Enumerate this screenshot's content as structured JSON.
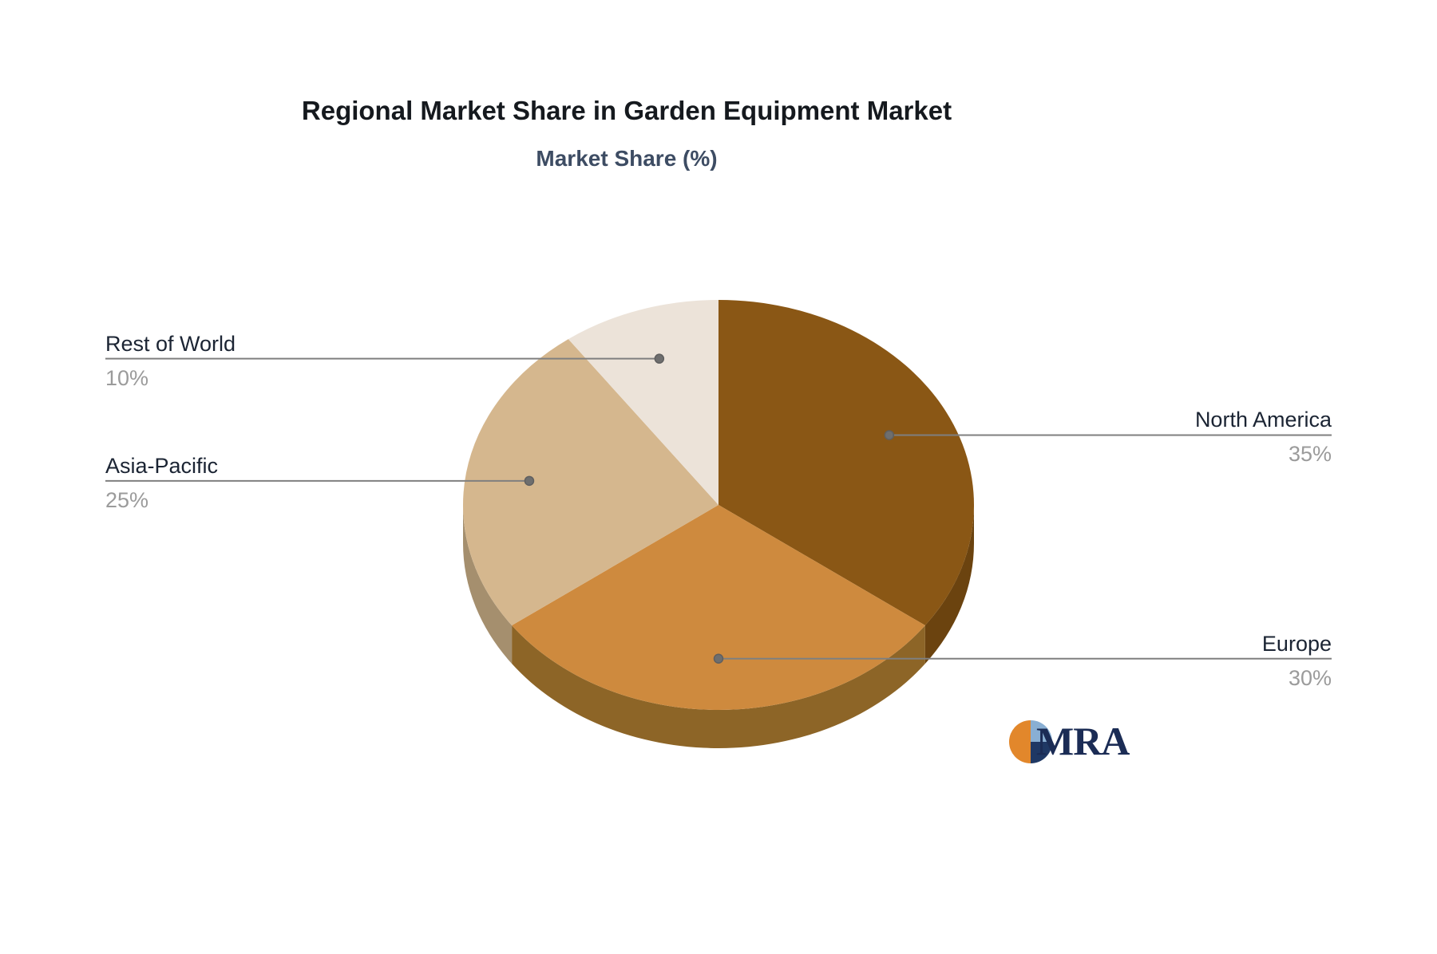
{
  "title": "Regional Market Share in Garden Equipment Market",
  "subtitle": "Market Share (%)",
  "chart_data": {
    "type": "pie",
    "title": "Regional Market Share in Garden Equipment Market",
    "subtitle": "Market Share (%)",
    "unit": "%",
    "effect": "3d",
    "direction": "clockwise",
    "start_angle_deg": 0,
    "legend": "none",
    "slices": [
      {
        "label": "North America",
        "value": 35,
        "display": "35%",
        "color": "#8A5715",
        "side_color": "#6B430F",
        "label_side": "right"
      },
      {
        "label": "Europe",
        "value": 30,
        "display": "30%",
        "color": "#CE8A3E",
        "side_color": "#8D6527",
        "label_side": "right"
      },
      {
        "label": "Asia-Pacific",
        "value": 25,
        "display": "25%",
        "color": "#D5B78E",
        "side_color": "#A58F6E",
        "label_side": "left"
      },
      {
        "label": "Rest of World",
        "value": 10,
        "display": "10%",
        "color": "#ECE3D9",
        "side_color": "#CBC0B2",
        "label_side": "left"
      }
    ],
    "leader_line_color": "#7F7F7F",
    "leader_dot_color": "#6E6E6E",
    "label_color": "#1B2433",
    "value_color": "#9B9B9B"
  },
  "branding": {
    "text": "MRA",
    "colors": {
      "orange": "#E2872B",
      "light_blue": "#89AFD3",
      "navy": "#1F3864",
      "text": "#1B2C55"
    }
  }
}
